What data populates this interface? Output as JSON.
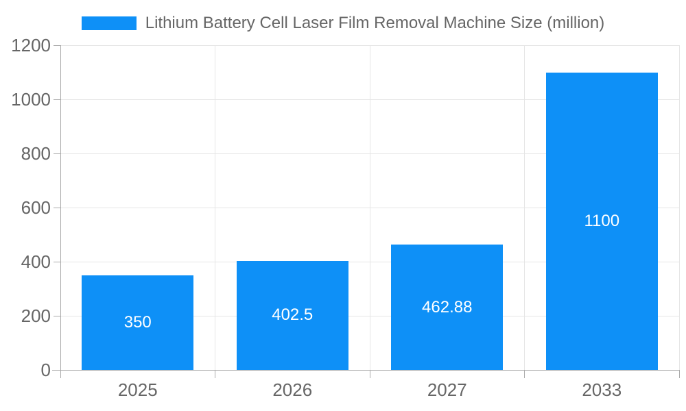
{
  "legend": {
    "label": "Lithium Battery Cell Laser Film Removal Machine Size (million)"
  },
  "chart_data": {
    "type": "bar",
    "title": "Lithium Battery Cell Laser Film Removal Machine Size (million)",
    "categories": [
      "2025",
      "2026",
      "2027",
      "2033"
    ],
    "values": [
      350,
      402.5,
      462.88,
      1100
    ],
    "bar_labels": [
      "350",
      "402.5",
      "462.88",
      "1100"
    ],
    "xlabel": "",
    "ylabel": "",
    "ylim": [
      0,
      1200
    ],
    "yticks": [
      0,
      200,
      400,
      600,
      800,
      1000,
      1200
    ],
    "ytick_labels": [
      "0",
      "200",
      "400",
      "600",
      "800",
      "1000",
      "1200"
    ],
    "grid": true,
    "legend_position": "top-center",
    "label_position": "inside-center"
  },
  "colors": {
    "bar": "#0E90F7",
    "axis": "#AAAAAA",
    "gridline": "#E5E5E5",
    "text": "#666666",
    "bar_label": "#FFFFFF",
    "background": "#FFFFFF"
  }
}
